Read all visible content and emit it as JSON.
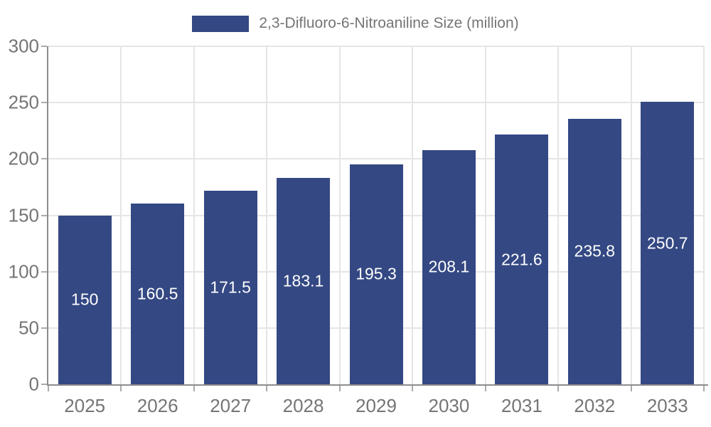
{
  "legend": {
    "label": "2,3-Difluoro-6-Nitroaniline Size (million)"
  },
  "chart_data": {
    "type": "bar",
    "title": "",
    "categories": [
      "2025",
      "2026",
      "2027",
      "2028",
      "2029",
      "2030",
      "2031",
      "2032",
      "2033"
    ],
    "series": [
      {
        "name": "2,3-Difluoro-6-Nitroaniline Size (million)",
        "values": [
          150,
          160.5,
          171.5,
          183.1,
          195.3,
          208.1,
          221.6,
          235.8,
          250.7
        ]
      }
    ],
    "value_labels": [
      "150",
      "160.5",
      "171.5",
      "183.1",
      "195.3",
      "208.1",
      "221.6",
      "235.8",
      "250.7"
    ],
    "xlabel": "",
    "ylabel": "",
    "ylim": [
      0,
      300
    ],
    "yticks": [
      0,
      50,
      100,
      150,
      200,
      250,
      300
    ],
    "grid": "both",
    "legend_position": "top-center",
    "colors": {
      "bar": "#344883",
      "value_label_text": "#ffffff",
      "axis_text": "#757575",
      "axis_line": "#8c8c8c",
      "gridline": "#e5e5e5"
    }
  }
}
